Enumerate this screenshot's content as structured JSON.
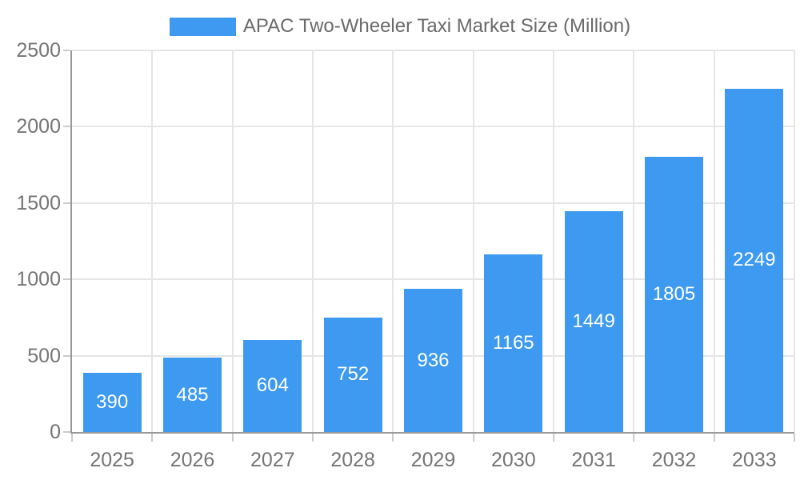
{
  "chart_data": {
    "type": "bar",
    "title": "APAC Two-Wheeler Taxi Market Size (Million)",
    "legend": {
      "position": "top",
      "label": "APAC Two-Wheeler Taxi Market Size (Million)"
    },
    "categories": [
      "2025",
      "2026",
      "2027",
      "2028",
      "2029",
      "2030",
      "2031",
      "2032",
      "2033"
    ],
    "series": [
      {
        "name": "APAC Two-Wheeler Taxi Market Size (Million)",
        "values": [
          390,
          485,
          604,
          752,
          936,
          1165,
          1449,
          1805,
          2249
        ]
      }
    ],
    "value_labels_position": "inside-center",
    "xlabel": "",
    "ylabel": "",
    "ylim": [
      0,
      2500
    ],
    "yticks": [
      0,
      500,
      1000,
      1500,
      2000,
      2500
    ],
    "grid": true,
    "colors": {
      "bar": "#3d9af0",
      "bar_value_text": "#ffffff",
      "axis_line": "#999999",
      "tick_mark": "#cccccc",
      "gridline": "#e6e6e6",
      "axis_text": "#757575",
      "title_text": "#6a6a6a",
      "background": "#ffffff"
    }
  }
}
